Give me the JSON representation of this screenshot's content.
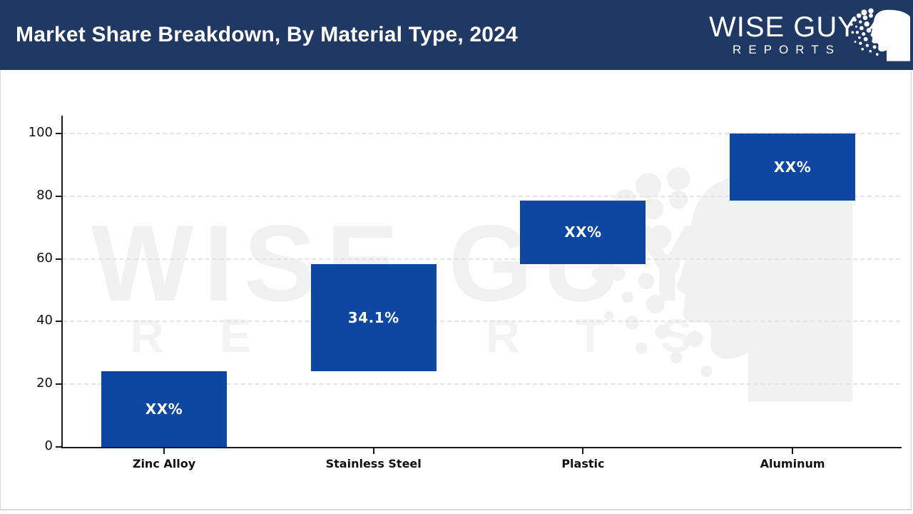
{
  "header": {
    "title": "Market Share Breakdown, By Material Type, 2024"
  },
  "logo": {
    "line1": "WISE GUY",
    "line2": "REPORTS"
  },
  "watermark": {
    "line1": "WISE GUY",
    "line2": "R E P O R T S"
  },
  "colors": {
    "header_bg": "#1f3864",
    "bar": "#0d47a1",
    "bar_label": "#ffffff",
    "watermark": "#f1f1f1",
    "grid": "#e4e4e4",
    "axis": "#1a1a1a"
  },
  "chart_data": {
    "type": "bar",
    "subtype": "waterfall",
    "title": "Market Share Breakdown, By Material Type, 2024",
    "xlabel": "",
    "ylabel": "",
    "categories": [
      "Zinc Alloy",
      "Stainless Steel",
      "Plastic",
      "Aluminum"
    ],
    "segments": [
      {
        "category": "Zinc Alloy",
        "start": 0,
        "end": 24.2,
        "label": "XX%"
      },
      {
        "category": "Stainless Steel",
        "start": 24.2,
        "end": 58.3,
        "label": "34.1%",
        "value": 34.1
      },
      {
        "category": "Plastic",
        "start": 58.3,
        "end": 78.6,
        "label": "XX%"
      },
      {
        "category": "Aluminum",
        "start": 78.6,
        "end": 100,
        "label": "XX%"
      }
    ],
    "ylim": [
      0,
      100
    ],
    "yticks": [
      0,
      20,
      40,
      60,
      80,
      100
    ],
    "grid": "horizontal-dashed",
    "legend": "none",
    "bar_color": "#0d47a1",
    "label_color": "#ffffff"
  }
}
